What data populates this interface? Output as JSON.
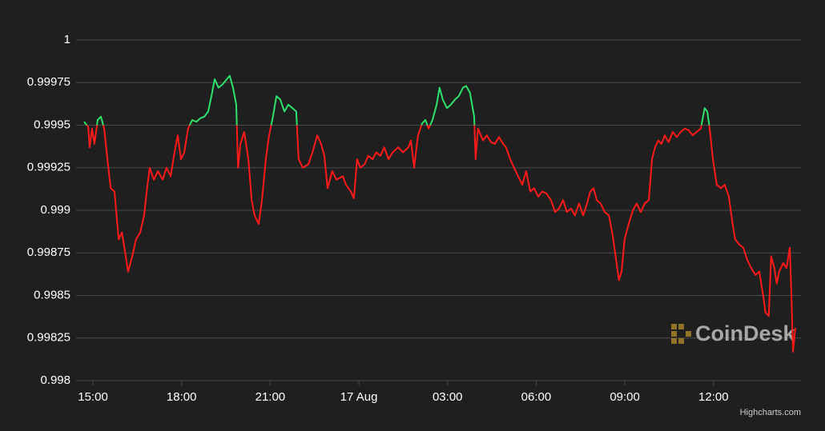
{
  "chart_data": {
    "type": "line",
    "watermark": "CoinDesk",
    "credits": "Highcharts.com",
    "xlim": [
      14.43,
      38.96
    ],
    "xticks": [
      {
        "value": 15,
        "label": "15:00"
      },
      {
        "value": 18,
        "label": "18:00"
      },
      {
        "value": 21,
        "label": "21:00"
      },
      {
        "value": 24,
        "label": "17 Aug"
      },
      {
        "value": 27,
        "label": "03:00"
      },
      {
        "value": 30,
        "label": "06:00"
      },
      {
        "value": 33,
        "label": "09:00"
      },
      {
        "value": 36,
        "label": "12:00"
      }
    ],
    "ylim": [
      0.998,
      1
    ],
    "yticks": [
      0.998,
      0.99825,
      0.9985,
      0.99875,
      0.999,
      0.99925,
      0.9995,
      0.99975,
      1
    ],
    "grid": true,
    "threshold": 0.9995,
    "color_above": "#2ee26b",
    "color_below": "#ff1a1a",
    "x": [
      14.7,
      14.84,
      14.89,
      14.97,
      15.05,
      15.16,
      15.27,
      15.38,
      15.49,
      15.6,
      15.73,
      15.87,
      15.98,
      16.11,
      16.19,
      16.33,
      16.46,
      16.6,
      16.73,
      16.82,
      16.92,
      17.06,
      17.2,
      17.36,
      17.49,
      17.63,
      17.76,
      17.87,
      17.98,
      18.09,
      18.22,
      18.36,
      18.5,
      18.63,
      18.77,
      18.9,
      19.01,
      19.12,
      19.25,
      19.39,
      19.53,
      19.63,
      19.74,
      19.85,
      19.91,
      19.99,
      20.12,
      20.26,
      20.37,
      20.47,
      20.61,
      20.72,
      20.85,
      20.96,
      21.07,
      21.21,
      21.34,
      21.48,
      21.61,
      21.75,
      21.88,
      21.96,
      22.1,
      22.29,
      22.43,
      22.59,
      22.72,
      22.83,
      22.94,
      23.1,
      23.24,
      23.46,
      23.56,
      23.73,
      23.83,
      23.94,
      24.05,
      24.19,
      24.32,
      24.46,
      24.59,
      24.73,
      24.86,
      25.0,
      25.14,
      25.33,
      25.49,
      25.68,
      25.76,
      25.87,
      26.0,
      26.14,
      26.25,
      26.36,
      26.49,
      26.63,
      26.73,
      26.84,
      26.98,
      27.11,
      27.25,
      27.38,
      27.52,
      27.63,
      27.76,
      27.9,
      27.95,
      28.03,
      28.2,
      28.33,
      28.47,
      28.6,
      28.74,
      28.88,
      28.98,
      29.12,
      29.25,
      29.39,
      29.53,
      29.66,
      29.8,
      29.93,
      30.07,
      30.2,
      30.34,
      30.5,
      30.64,
      30.77,
      30.91,
      31.04,
      31.18,
      31.31,
      31.45,
      31.59,
      31.72,
      31.83,
      31.94,
      32.05,
      32.18,
      32.32,
      32.46,
      32.59,
      32.72,
      32.8,
      32.89,
      32.99,
      33.13,
      33.27,
      33.4,
      33.54,
      33.67,
      33.81,
      33.92,
      34.02,
      34.13,
      34.24,
      34.35,
      34.48,
      34.62,
      34.76,
      34.89,
      35.03,
      35.16,
      35.3,
      35.43,
      35.57,
      35.7,
      35.79,
      35.87,
      35.98,
      36.11,
      36.25,
      36.38,
      36.52,
      36.63,
      36.73,
      36.87,
      37.01,
      37.14,
      37.28,
      37.42,
      37.55,
      37.68,
      37.76,
      37.87,
      37.95,
      38.06,
      38.14,
      38.22,
      38.36,
      38.47,
      38.58,
      38.63,
      38.69,
      38.77
    ],
    "values": [
      0.99952,
      0.99949,
      0.99937,
      0.99948,
      0.99939,
      0.99953,
      0.99955,
      0.99948,
      0.9993,
      0.99913,
      0.99911,
      0.99883,
      0.99887,
      0.99873,
      0.99864,
      0.99873,
      0.99883,
      0.99887,
      0.99897,
      0.99911,
      0.99925,
      0.99918,
      0.99923,
      0.99918,
      0.99925,
      0.9992,
      0.99934,
      0.99944,
      0.9993,
      0.99934,
      0.99948,
      0.99953,
      0.99952,
      0.99954,
      0.99955,
      0.99958,
      0.99967,
      0.99977,
      0.99972,
      0.99974,
      0.99977,
      0.99979,
      0.99972,
      0.99962,
      0.99925,
      0.99939,
      0.99946,
      0.9993,
      0.99906,
      0.99897,
      0.99892,
      0.99906,
      0.9993,
      0.99944,
      0.99953,
      0.99967,
      0.99965,
      0.99958,
      0.99962,
      0.9996,
      0.99958,
      0.9993,
      0.99925,
      0.99927,
      0.99934,
      0.99944,
      0.99939,
      0.99932,
      0.99913,
      0.99923,
      0.99918,
      0.9992,
      0.99915,
      0.99911,
      0.99907,
      0.9993,
      0.99925,
      0.99927,
      0.99932,
      0.9993,
      0.99934,
      0.99932,
      0.99937,
      0.9993,
      0.99934,
      0.99937,
      0.99934,
      0.99937,
      0.99941,
      0.99925,
      0.99944,
      0.99951,
      0.99953,
      0.99948,
      0.99953,
      0.99962,
      0.99972,
      0.99965,
      0.9996,
      0.99962,
      0.99965,
      0.99967,
      0.99972,
      0.99973,
      0.99969,
      0.99955,
      0.9993,
      0.99948,
      0.99941,
      0.99944,
      0.9994,
      0.99939,
      0.99943,
      0.99939,
      0.99937,
      0.9993,
      0.99925,
      0.9992,
      0.99915,
      0.99923,
      0.99911,
      0.99913,
      0.99908,
      0.99911,
      0.9991,
      0.99906,
      0.99899,
      0.99901,
      0.99906,
      0.99899,
      0.99901,
      0.99897,
      0.99904,
      0.99897,
      0.99904,
      0.99911,
      0.99913,
      0.99906,
      0.99904,
      0.99899,
      0.99897,
      0.99885,
      0.99869,
      0.99859,
      0.99864,
      0.99883,
      0.99892,
      0.999,
      0.99904,
      0.99899,
      0.99904,
      0.99906,
      0.9993,
      0.99937,
      0.99941,
      0.99939,
      0.99944,
      0.9994,
      0.99946,
      0.99943,
      0.99946,
      0.99948,
      0.99947,
      0.99944,
      0.99946,
      0.99948,
      0.9996,
      0.99958,
      0.99948,
      0.9993,
      0.99915,
      0.99913,
      0.99915,
      0.99908,
      0.99894,
      0.99883,
      0.9988,
      0.99878,
      0.99871,
      0.99866,
      0.99862,
      0.99864,
      0.9985,
      0.9984,
      0.99838,
      0.99873,
      0.99866,
      0.99857,
      0.99864,
      0.99869,
      0.99866,
      0.99878,
      0.99854,
      0.99817,
      0.99831
    ]
  }
}
